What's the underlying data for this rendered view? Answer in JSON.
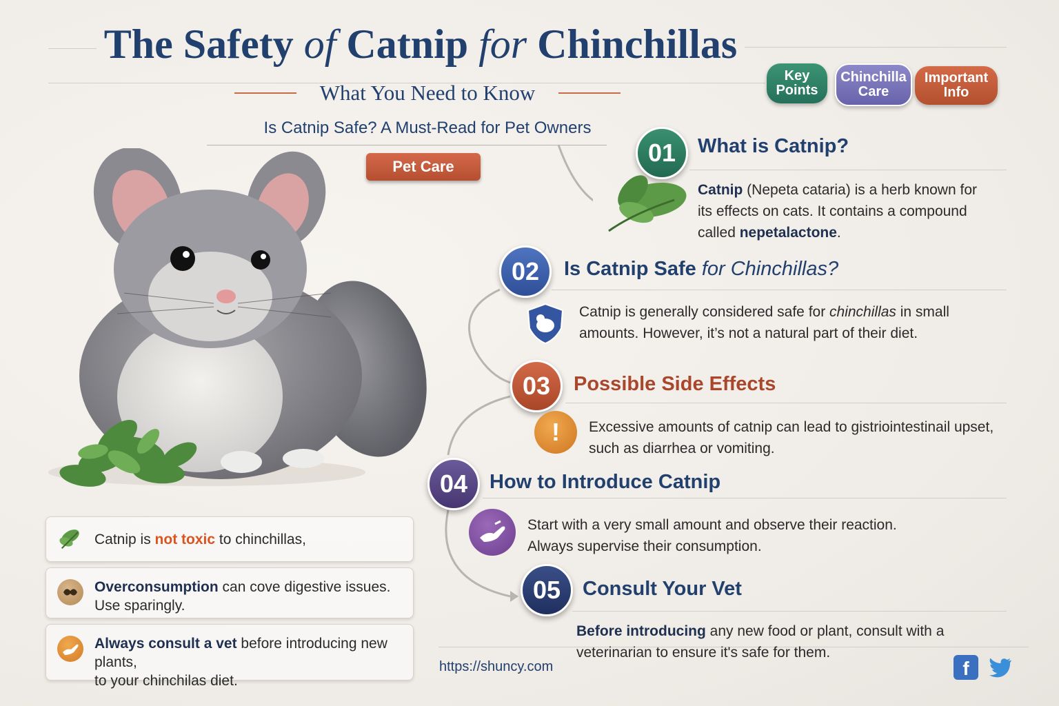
{
  "header": {
    "title_1": "The Safety ",
    "title_of": "of",
    "title_2": " Catnip ",
    "title_for": "for",
    "title_3": " Chinchillas",
    "subtitle": "What You Need to Know",
    "question": "Is Catnip Safe? A Must-Read for Pet Owners",
    "pet_care": "Pet Care"
  },
  "badges": {
    "key_points": "Key Points",
    "chinchilla_care": "Chinchilla Care",
    "important_info": "Important Info"
  },
  "steps": [
    {
      "num": "01",
      "title": "What is Catnip?",
      "icon": "leaf-icon",
      "text_bold": "Catnip",
      "text_1": " (Nepeta cataria) is a herb known for its effects on cats. It contains a compound called ",
      "text_bold2": "nepetalactone",
      "text_2": "."
    },
    {
      "num": "02",
      "title_1": "Is Catnip Safe ",
      "title_2": "for Chinchillas?",
      "icon": "shield-icon",
      "text_1": "Catnip is generally considered safe for ",
      "text_it": "chinchillas",
      "text_2": " in small amounts. However, it’s not a natural part of their diet."
    },
    {
      "num": "03",
      "title": "Possible Side Effects",
      "icon": "warning-icon",
      "text": "Excessive amounts of catnip can lead to gistriointestinail upset, such as diarrhea or vomiting."
    },
    {
      "num": "04",
      "title": "How to Introduce Catnip",
      "icon": "hand-icon",
      "text": "Start with a very small amount and observe their reaction. Always supervise their consumption."
    },
    {
      "num": "05",
      "title": "Consult Your Vet",
      "icon": "stethoscope-icon",
      "text_bold": "Before introducing",
      "text": " any new food or plant, consult with a veterinarian to ensure it's safe for them."
    }
  ],
  "tips": [
    {
      "icon": "leaf-icon",
      "text_1": "Catnip is ",
      "text_hl": "not toxic",
      "text_2": " to chinchillas,"
    },
    {
      "icon": "gut-icon",
      "text_bold": "Overconsumption",
      "text_1": " can cove digestive issues.",
      "text_2": "Use sparingly."
    },
    {
      "icon": "hand-icon",
      "text_bold": "Always consult a vet",
      "text_1": " before introducing new plants,",
      "text_2": "to your chinchilas diet."
    }
  ],
  "footer": {
    "url": "https://shuncy.com",
    "social": [
      "facebook-icon",
      "twitter-icon"
    ]
  },
  "colors": {
    "navy": "#22406e",
    "green": "#2e7d62",
    "blue": "#3a5ea8",
    "red": "#c0553a",
    "purple": "#5b4a86",
    "highlight": "#d9541f"
  }
}
